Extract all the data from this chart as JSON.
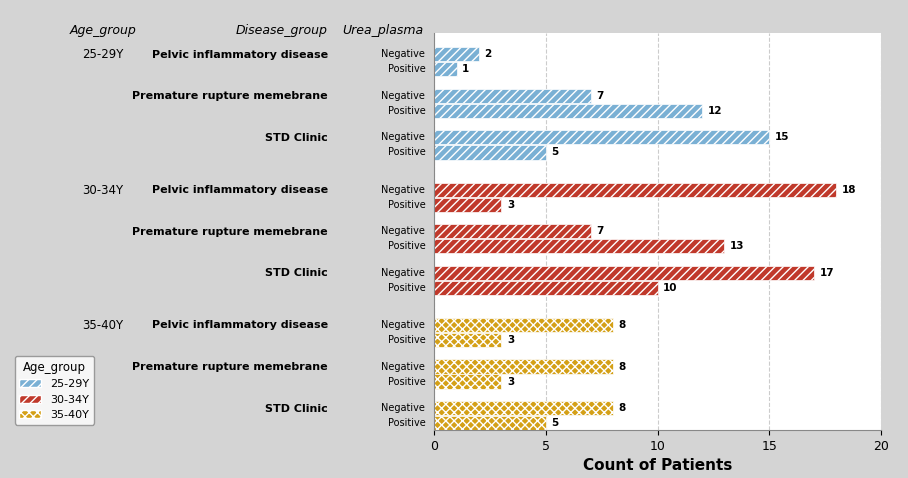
{
  "xlabel": "Count of Patients",
  "xlim": [
    0,
    20
  ],
  "xticks": [
    0,
    5,
    10,
    15,
    20
  ],
  "background_color": "#d4d4d4",
  "plot_bg_color": "#ffffff",
  "groups": [
    {
      "age": "25-29Y",
      "disease": "Pelvic inflammatory disease",
      "negative": 2,
      "positive": 1,
      "color": "#7ab0d4",
      "hatch": "////"
    },
    {
      "age": "",
      "disease": "Premature rupture memebrane",
      "negative": 7,
      "positive": 12,
      "color": "#7ab0d4",
      "hatch": "////"
    },
    {
      "age": "",
      "disease": "STD Clinic",
      "negative": 15,
      "positive": 5,
      "color": "#7ab0d4",
      "hatch": "////"
    },
    {
      "age": "30-34Y",
      "disease": "Pelvic inflammatory disease",
      "negative": 18,
      "positive": 3,
      "color": "#c0392b",
      "hatch": "////"
    },
    {
      "age": "",
      "disease": "Premature rupture memebrane",
      "negative": 7,
      "positive": 13,
      "color": "#c0392b",
      "hatch": "////"
    },
    {
      "age": "",
      "disease": "STD Clinic",
      "negative": 17,
      "positive": 10,
      "color": "#c0392b",
      "hatch": "////"
    },
    {
      "age": "35-40Y",
      "disease": "Pelvic inflammatory disease",
      "negative": 8,
      "positive": 3,
      "color": "#d4a017",
      "hatch": "xxxx"
    },
    {
      "age": "",
      "disease": "Premature rupture memebrane",
      "negative": 8,
      "positive": 3,
      "color": "#d4a017",
      "hatch": "xxxx"
    },
    {
      "age": "",
      "disease": "STD Clinic",
      "negative": 8,
      "positive": 5,
      "color": "#d4a017",
      "hatch": "xxxx"
    }
  ],
  "age_labels": [
    "25-29Y",
    "30-34Y",
    "35-40Y"
  ],
  "disease_labels": [
    "Pelvic inflammatory disease",
    "Premature rupture memebrane",
    "STD Clinic"
  ],
  "col_headers": [
    "Age_group",
    "Disease_group",
    "Urea_plasma"
  ],
  "legend_title": "Age_group",
  "legend_items": [
    {
      "label": "25-29Y",
      "color": "#7ab0d4",
      "hatch": "////"
    },
    {
      "label": "30-34Y",
      "color": "#c0392b",
      "hatch": "////"
    },
    {
      "label": "35-40Y",
      "color": "#d4a017",
      "hatch": "xxxx"
    }
  ]
}
